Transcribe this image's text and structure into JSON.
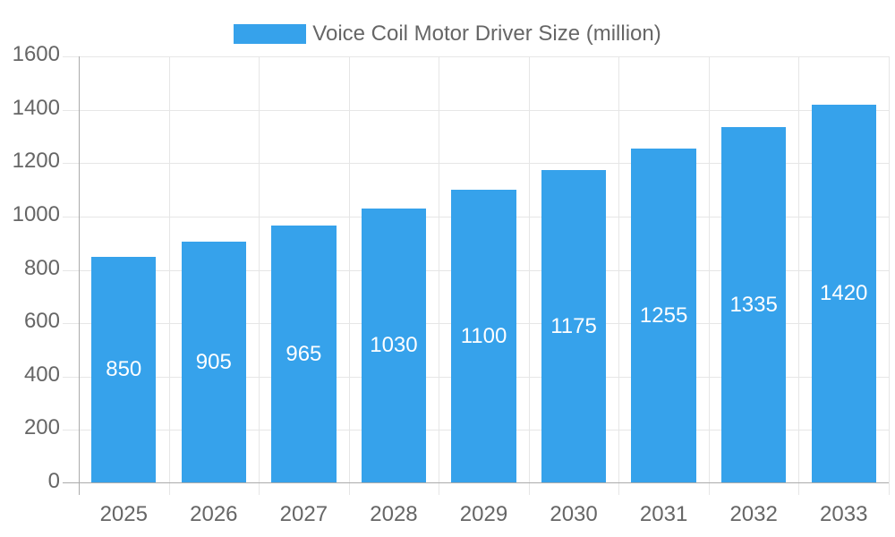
{
  "legend": {
    "label": "Voice Coil Motor Driver Size (million)"
  },
  "chart_data": {
    "type": "bar",
    "title": "Voice Coil Motor Driver Size (million)",
    "categories": [
      "2025",
      "2026",
      "2027",
      "2028",
      "2029",
      "2030",
      "2031",
      "2032",
      "2033"
    ],
    "series": [
      {
        "name": "Voice Coil Motor Driver Size (million)",
        "values": [
          850,
          905,
          965,
          1030,
          1100,
          1175,
          1255,
          1335,
          1420
        ]
      }
    ],
    "values": [
      850,
      905,
      965,
      1030,
      1100,
      1175,
      1255,
      1335,
      1420
    ],
    "bar_value_labels": [
      "850",
      "905",
      "965",
      "1030",
      "1100",
      "1175",
      "1255",
      "1335",
      "1420"
    ],
    "xlabel": "",
    "ylabel": "",
    "ylim": [
      0,
      1600
    ],
    "ytick_step": 200,
    "yticks": [
      0,
      200,
      400,
      600,
      800,
      1000,
      1200,
      1400,
      1600
    ],
    "grid": true,
    "legend_position": "top-center",
    "value_label_position": "inside-center",
    "colors": {
      "bar": "#36A2EB",
      "bar_label": "#FFFFFF",
      "grid": "#E6E6E6",
      "axis": "#ABABAB",
      "tick_text": "#666666",
      "background": "#FFFFFF"
    }
  }
}
